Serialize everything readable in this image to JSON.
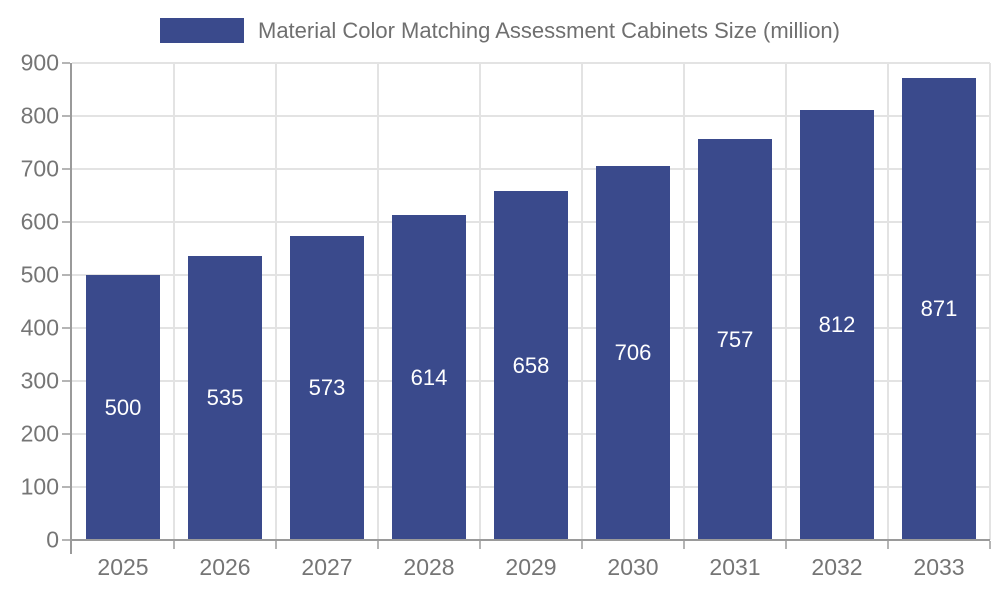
{
  "legend": {
    "label": "Material Color Matching Assessment Cabinets Size (million)"
  },
  "chart_data": {
    "type": "bar",
    "title": "Material Color Matching Assessment Cabinets Size (million)",
    "categories": [
      "2025",
      "2026",
      "2027",
      "2028",
      "2029",
      "2030",
      "2031",
      "2032",
      "2033"
    ],
    "values": [
      500,
      535,
      573,
      614,
      658,
      706,
      757,
      812,
      871
    ],
    "xlabel": "",
    "ylabel": "",
    "ylim": [
      0,
      900
    ],
    "ytick_interval": 100,
    "ytick_labels": [
      "0",
      "100",
      "200",
      "300",
      "400",
      "500",
      "600",
      "700",
      "800",
      "900"
    ],
    "grid": true,
    "legend_position": "top-center",
    "value_labels": "inside-center",
    "colors": {
      "bar": "#3A4A8C",
      "value_label": "#FFFFFF",
      "grid_line": "#E3E3E3",
      "axis_line": "#9A9A9A",
      "tick_label": "#757575",
      "legend_text": "#6F6F6F",
      "background": "#FFFFFF"
    }
  }
}
